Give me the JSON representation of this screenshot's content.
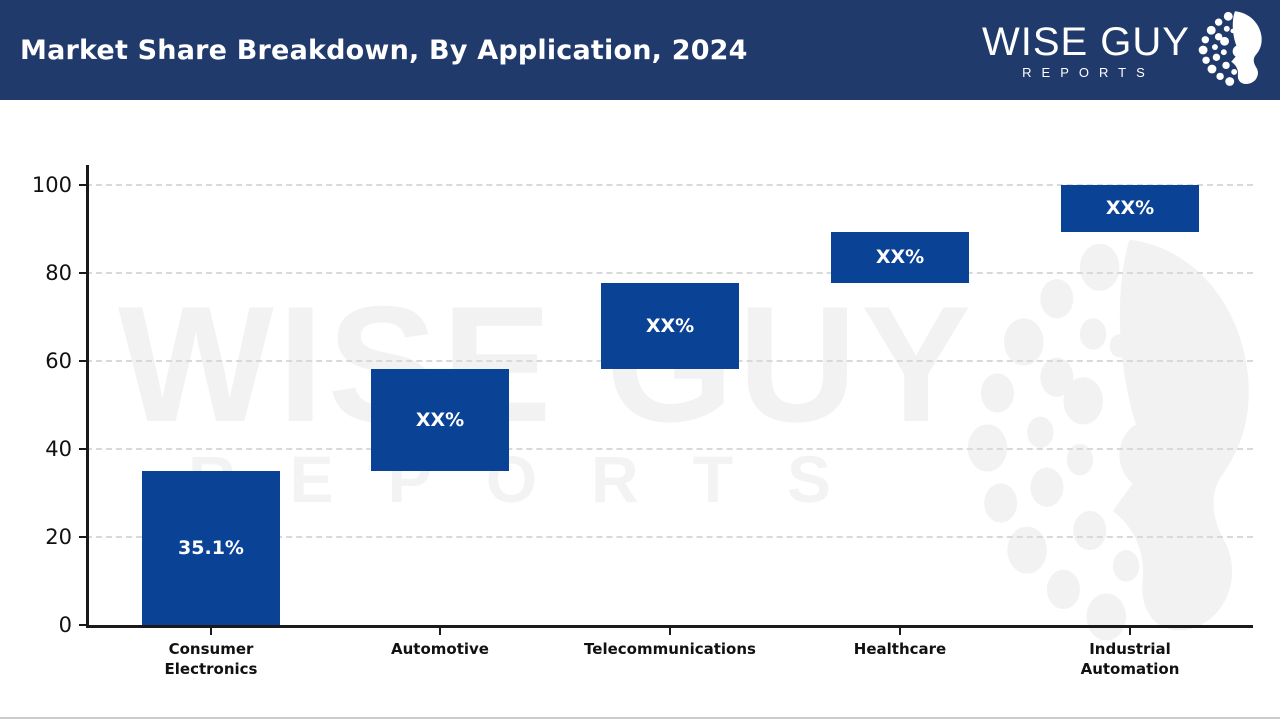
{
  "header": {
    "title": "Market Share Breakdown, By Application, 2024"
  },
  "logo": {
    "name": "WISE GUY REPORTS",
    "line1": "WISE GUY",
    "line2": "REPORTS"
  },
  "watermark": {
    "line1": "WISE GUY",
    "line2": "REPORTS"
  },
  "chart_data": {
    "type": "bar",
    "subtype": "waterfall",
    "title": "Market Share Breakdown, By Application, 2024",
    "categories": [
      "Consumer Electronics",
      "Automotive",
      "Telecommunications",
      "Healthcare",
      "Industrial Automation"
    ],
    "segments": [
      {
        "category": "Consumer Electronics",
        "label_lines": [
          "Consumer",
          "Electronics"
        ],
        "start": 0,
        "end": 35.1,
        "value": 35.1,
        "value_label": "35.1%"
      },
      {
        "category": "Automotive",
        "label_lines": [
          "Automotive"
        ],
        "start": 35.1,
        "end": 58.2,
        "value": 23.1,
        "value_label": "XX%"
      },
      {
        "category": "Telecommunications",
        "label_lines": [
          "Telecommunications"
        ],
        "start": 58.2,
        "end": 77.7,
        "value": 19.5,
        "value_label": "XX%"
      },
      {
        "category": "Healthcare",
        "label_lines": [
          "Healthcare"
        ],
        "start": 77.7,
        "end": 89.4,
        "value": 11.7,
        "value_label": "XX%"
      },
      {
        "category": "Industrial Automation",
        "label_lines": [
          "Industrial",
          "Automation"
        ],
        "start": 89.4,
        "end": 100.0,
        "value": 10.6,
        "value_label": "XX%"
      }
    ],
    "y_ticks": [
      0,
      20,
      40,
      60,
      80,
      100
    ],
    "ylim": [
      0,
      104
    ],
    "xlabel": "",
    "ylabel": "",
    "grid": "horizontal-dashed",
    "legend": "none",
    "bar_color": "#0a4296",
    "bar_label_color": "#ffffff"
  },
  "colors": {
    "header_bg": "#203a6b",
    "header_text": "#ffffff",
    "plot_bg": "#ffffff",
    "axis": "#1a1a1a",
    "gridline": "#d9d9d9",
    "tick_label": "#111111",
    "watermark": "#f2f2f2",
    "bottom_rule": "#cbcbcb"
  }
}
